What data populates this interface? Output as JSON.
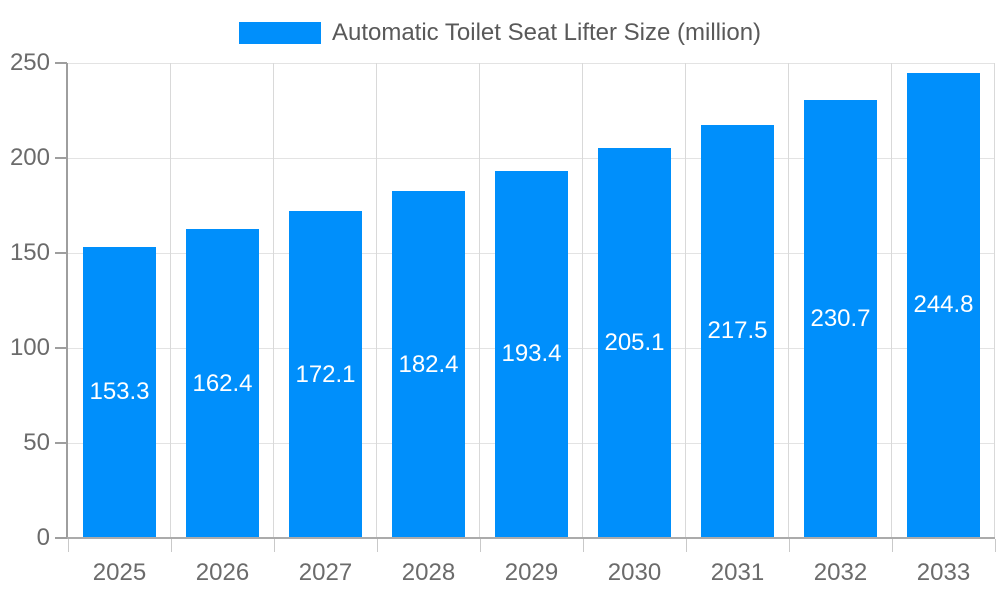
{
  "chart_data": {
    "type": "bar",
    "title": "Automatic Toilet Seat Lifter Size (million)",
    "legend": {
      "position": "top",
      "label": "Automatic Toilet Seat Lifter Size (million)"
    },
    "categories": [
      "2025",
      "2026",
      "2027",
      "2028",
      "2029",
      "2030",
      "2031",
      "2032",
      "2033"
    ],
    "values": [
      153.3,
      162.4,
      172.1,
      182.4,
      193.4,
      205.1,
      217.5,
      230.7,
      244.8
    ],
    "xlabel": "",
    "ylabel": "",
    "ylim": [
      0,
      250
    ],
    "yticks": [
      0,
      50,
      100,
      150,
      200,
      250
    ],
    "grid": true,
    "value_labels_shown": true,
    "colors": {
      "bar": "#008ffb",
      "value_label": "#ffffff",
      "axis_label": "#6b6b6b",
      "legend_text": "#595959",
      "gridline": "#e3e3e3",
      "axis_line": "#9e9e9e"
    }
  }
}
